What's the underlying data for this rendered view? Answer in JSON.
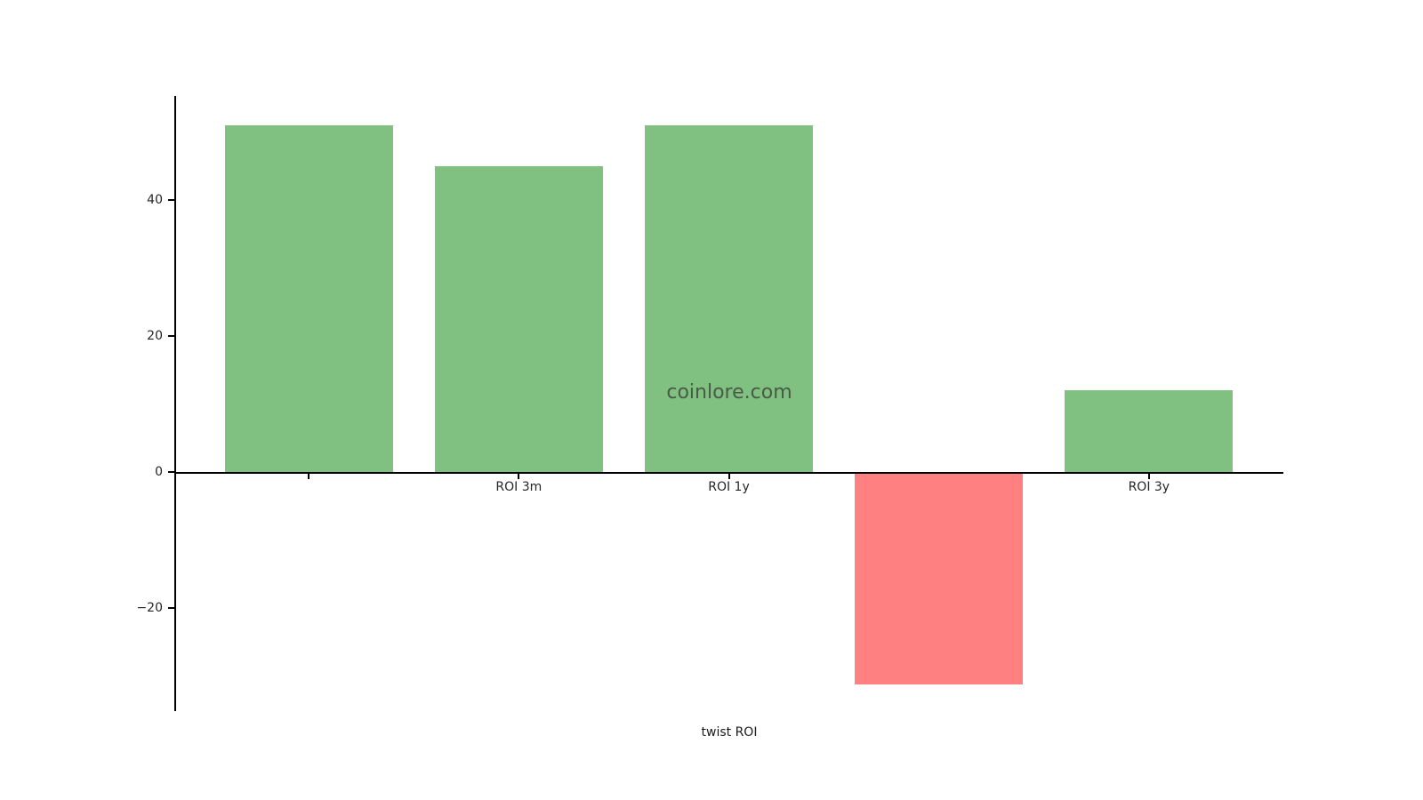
{
  "page": {
    "background": "#ffffff",
    "watermark": "coinlore.com"
  },
  "chart_data": {
    "type": "bar",
    "title": "",
    "xlabel": "twist ROI",
    "ylabel": "",
    "categories": [
      "",
      "ROI 3m",
      "ROI 1y",
      "",
      "ROI 3y"
    ],
    "values": [
      51,
      45,
      51,
      -31,
      12
    ],
    "x_ticks_visible": [
      true,
      true,
      true,
      false,
      true
    ],
    "y_ticks": [
      40,
      20,
      0,
      -20
    ],
    "y_tick_labels": [
      "40",
      "20",
      "0",
      "−20"
    ],
    "ylim": [
      -35.2,
      55.3
    ],
    "grid": false,
    "legend": false,
    "colors": {
      "positive_bar": "#80c080",
      "negative_bar": "#ff8080",
      "axis": "#000000",
      "tick_text": "#262626"
    }
  }
}
